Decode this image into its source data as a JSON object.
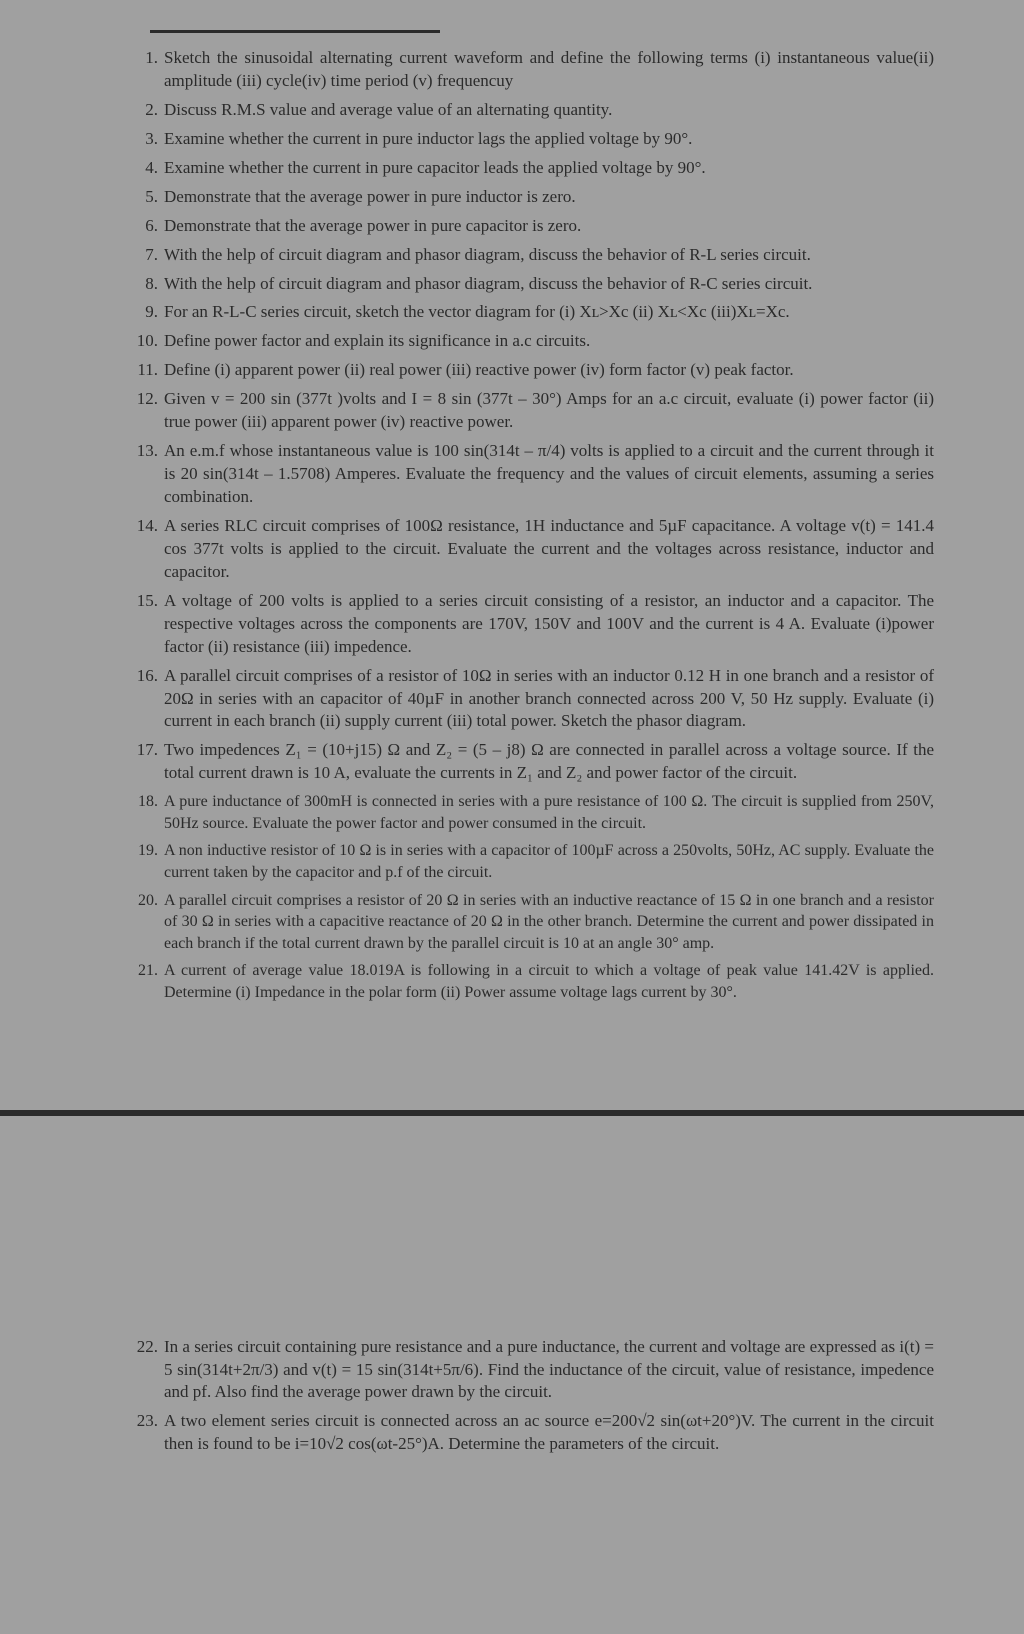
{
  "questions_page1": [
    {
      "n": "1.",
      "text": "Sketch the sinusoidal alternating current waveform and define the following terms (i) instantaneous value(ii) amplitude (iii) cycle(iv) time period (v) frequencuy"
    },
    {
      "n": "2.",
      "text": "Discuss R.M.S value and average value of an alternating quantity."
    },
    {
      "n": "3.",
      "text": "Examine whether the current in pure inductor lags the applied voltage by 90°."
    },
    {
      "n": "4.",
      "text": "Examine whether the current in pure capacitor leads the applied voltage by 90°."
    },
    {
      "n": "5.",
      "text": "Demonstrate that the average power in pure inductor is zero."
    },
    {
      "n": "6.",
      "text": "Demonstrate that the average power in pure capacitor is zero."
    },
    {
      "n": "7.",
      "text": "With the help of circuit diagram and phasor diagram, discuss the behavior of R-L series circuit."
    },
    {
      "n": "8.",
      "text": "With the help of circuit diagram and phasor diagram, discuss the behavior of R-C series circuit."
    },
    {
      "n": "9.",
      "text": "For an R-L-C series circuit, sketch the vector diagram for (i) Xʟ>Xc (ii) Xʟ<Xc (iii)Xʟ=Xc."
    },
    {
      "n": "10.",
      "text": "Define power factor and explain its significance in a.c circuits."
    },
    {
      "n": "11.",
      "text": "Define (i) apparent power (ii) real power (iii) reactive power (iv) form factor (v) peak factor."
    },
    {
      "n": "12.",
      "text": "Given v = 200 sin (377t )volts and I = 8 sin (377t – 30°) Amps for an a.c circuit, evaluate (i) power factor (ii) true power (iii) apparent power (iv) reactive power."
    },
    {
      "n": "13.",
      "text": "An e.m.f whose instantaneous value is 100 sin(314t – π/4) volts is applied to a circuit and the current through it is 20 sin(314t – 1.5708) Amperes. Evaluate the frequency and the values of circuit elements, assuming a series combination."
    },
    {
      "n": "14.",
      "text": "A series RLC circuit comprises of 100Ω resistance, 1H inductance and 5µF capacitance. A voltage v(t) = 141.4 cos 377t volts is applied to the circuit. Evaluate the current and the voltages across resistance, inductor and capacitor."
    },
    {
      "n": "15.",
      "text": "A voltage of 200 volts is applied to a series circuit consisting of a resistor, an inductor and a capacitor. The respective voltages across the components are 170V, 150V and 100V and the current is 4 A. Evaluate (i)power factor (ii) resistance (iii) impedence."
    },
    {
      "n": "16.",
      "text": "A parallel circuit comprises of a resistor of 10Ω in series with an inductor 0.12 H in one branch and a resistor of 20Ω in series with an capacitor of 40µF in another branch connected across 200 V, 50 Hz supply. Evaluate (i) current in each branch (ii) supply current (iii) total power. Sketch the phasor diagram."
    },
    {
      "n": "17.",
      "text": "Two impedences Z₁ = (10+j15) Ω and Z₂ = (5 – j8) Ω are connected in parallel across a voltage source. If the total current drawn is 10 A, evaluate the currents in Z₁ and Z₂ and power factor of the circuit."
    },
    {
      "n": "18.",
      "text": "A pure inductance of 300mH is connected in series with a pure resistance of 100 Ω. The circuit is supplied from 250V, 50Hz source. Evaluate the power factor and power consumed in the circuit.",
      "small": true
    },
    {
      "n": "19.",
      "text": "A non inductive resistor of 10 Ω is in series with a capacitor of 100µF across a 250volts, 50Hz, AC supply. Evaluate the current taken by the capacitor and p.f of the circuit.",
      "small": true
    },
    {
      "n": "20.",
      "text": "A parallel circuit comprises a resistor of 20 Ω in series with an inductive reactance of 15 Ω in one branch and a resistor of 30 Ω in series with a capacitive reactance of 20 Ω in the other branch. Determine the current and power dissipated in each branch if the total current drawn by the parallel circuit is 10 at an angle 30° amp.",
      "small": true
    },
    {
      "n": "21.",
      "text": "A current of average value 18.019A is following in a circuit to which a voltage of peak value 141.42V is applied. Determine  (i) Impedance in the polar form (ii) Power assume voltage lags current by 30°.",
      "small": true
    }
  ],
  "questions_page2": [
    {
      "n": "22.",
      "text": "In a series circuit containing pure resistance and a pure inductance, the current and voltage are expressed as i(t) = 5 sin(314t+2π/3) and v(t) = 15 sin(314t+5π/6). Find the inductance of the circuit, value of resistance, impedence and pf. Also find the average power drawn by the circuit."
    },
    {
      "n": "23.",
      "text": "A two element series circuit is connected across an ac source e=200√2 sin(ωt+20°)V. The current in the circuit then is found to be i=10√2 cos(ωt-25°)A.  Determine the parameters of the circuit."
    }
  ]
}
